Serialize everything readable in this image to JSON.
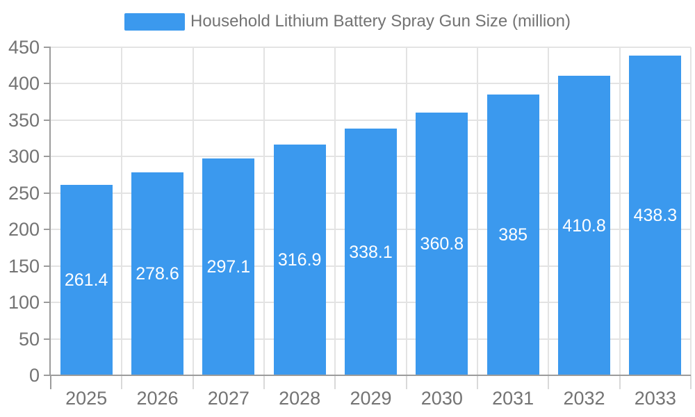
{
  "legend": {
    "position": "top",
    "items": [
      {
        "label": "Household Lithium Battery Spray Gun Size (million)",
        "color": "#3B99EE"
      }
    ]
  },
  "chart_data": {
    "type": "bar",
    "title": "Household Lithium Battery Spray Gun Size (million)",
    "categories": [
      "2025",
      "2026",
      "2027",
      "2028",
      "2029",
      "2030",
      "2031",
      "2032",
      "2033"
    ],
    "series": [
      {
        "name": "Household Lithium Battery Spray Gun Size (million)",
        "values": [
          261.4,
          278.6,
          297.1,
          316.9,
          338.1,
          360.8,
          385,
          410.8,
          438.3
        ],
        "value_labels": [
          "261.4",
          "278.6",
          "297.1",
          "316.9",
          "338.1",
          "360.8",
          "385",
          "410.8",
          "438.3"
        ],
        "color": "#3B99EE"
      }
    ],
    "xlabel": "",
    "ylabel": "",
    "ylim": [
      0,
      450
    ],
    "yticks": [
      0,
      50,
      100,
      150,
      200,
      250,
      300,
      350,
      400,
      450
    ],
    "grid": true,
    "legend_position": "top",
    "colors": {
      "bar": "#3B99EE",
      "value_label": "#ffffff",
      "axis_label": "#737373",
      "legend_text": "#737373",
      "gridline": "#e3e3e3",
      "axis_line": "#9b9b9b",
      "x_tick": "#d9d9d9",
      "background": "#ffffff"
    }
  }
}
